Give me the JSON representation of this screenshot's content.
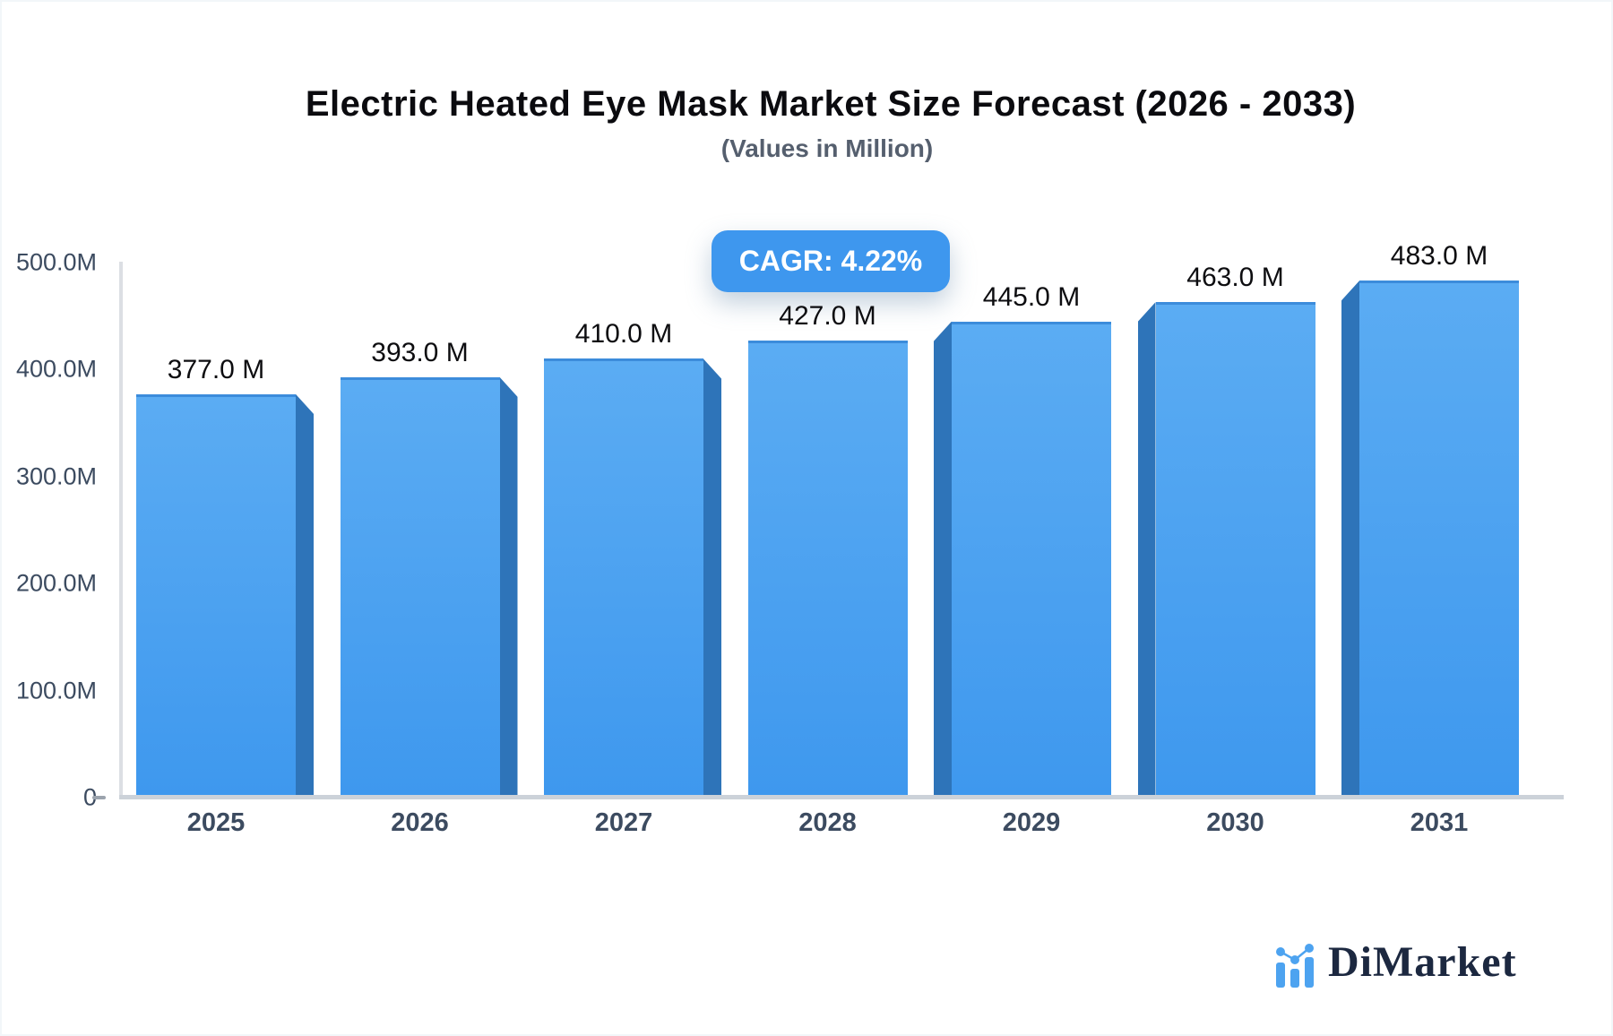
{
  "header": {
    "title": "Electric Heated Eye Mask Market Size Forecast (2026 - 2033)",
    "subtitle": "(Values in Million)"
  },
  "cagr_badge": {
    "label": "CAGR: 4.22%"
  },
  "chart_data": {
    "type": "bar",
    "title": "Electric Heated Eye Mask Market Size Forecast (2026 - 2033)",
    "subtitle": "(Values in Million)",
    "categories": [
      "2025",
      "2026",
      "2027",
      "2028",
      "2029",
      "2030",
      "2031"
    ],
    "values": [
      377,
      393,
      410,
      427,
      445,
      463,
      483
    ],
    "value_labels": [
      "377.0 M",
      "393.0 M",
      "410.0 M",
      "427.0 M",
      "445.0 M",
      "463.0 M",
      "483.0 M"
    ],
    "xlabel": "",
    "ylabel": "",
    "ylim": [
      0,
      500
    ],
    "yticks": [
      {
        "value": 0,
        "label": "0"
      },
      {
        "value": 100,
        "label": "100.0M"
      },
      {
        "value": 200,
        "label": "200.0M"
      },
      {
        "value": 300,
        "label": "300.0M"
      },
      {
        "value": 400,
        "label": "400.0M"
      },
      {
        "value": 500,
        "label": "500.0M"
      }
    ],
    "grid": false,
    "legend": null,
    "annotations": [
      "CAGR: 4.22%"
    ],
    "style": "3d-perspective-bars"
  },
  "colors": {
    "bar_front_top": "#5bacf3",
    "bar_front_bottom": "#3e98ee",
    "bar_front_edge": "#3c8cdb",
    "bar_side_dark": "#2e74b9",
    "badge_bg": "#3e97ee",
    "badge_text": "#ffffff",
    "axis_text": "#3c4b60",
    "value_text": "#0d0d10",
    "axis_line": "#ccd2d9",
    "logo_blue": "#4da3f0",
    "logo_navy": "#1c2840"
  },
  "footer_logo": {
    "text": "DiMarket"
  }
}
